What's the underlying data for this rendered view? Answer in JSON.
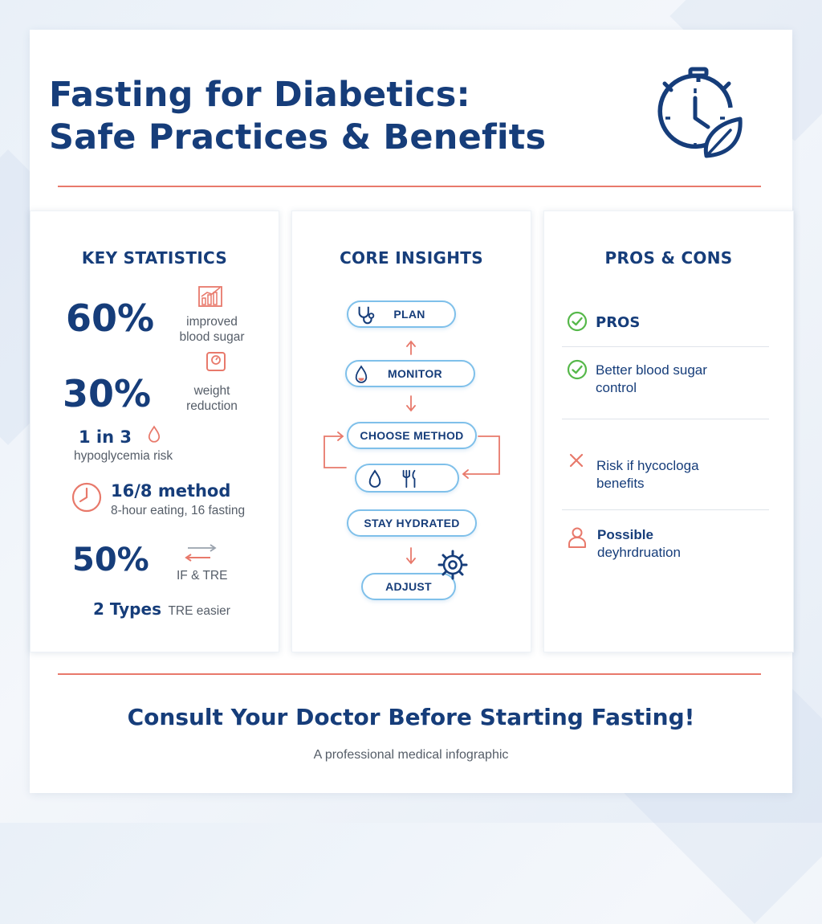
{
  "header": {
    "title_line1": "Fasting for Diabetics:",
    "title_line2": "Safe Practices & Benefits",
    "icon": "stopwatch-leaf-icon"
  },
  "colors": {
    "navy": "#163d7a",
    "accent_red": "#e8796b",
    "pill_blue": "#7fc0ea",
    "check_green": "#56b84a",
    "gray_text": "#555d68"
  },
  "stats": {
    "title": "KEY STATISTICS",
    "items": [
      {
        "value": "60%",
        "label_line1": "improved",
        "label_line2": "blood sugar",
        "icon": "chart-icon"
      },
      {
        "value": "30%",
        "label_line1": "weight",
        "label_line2": "reduction",
        "icon": "scale-icon"
      },
      {
        "value": "1 in 3",
        "label": "hypoglycemia risk",
        "icon": "drop-icon"
      },
      {
        "value": "16/8 method",
        "label": "8-hour eating, 16 fasting",
        "icon": "clock-icon"
      },
      {
        "value": "50%",
        "label": "IF & TRE",
        "icon": "arrows-icon"
      },
      {
        "value": "2 Types",
        "label": "TRE easier"
      }
    ]
  },
  "insights": {
    "title": "CORE INSIGHTS",
    "steps": [
      {
        "label": "PLAN",
        "icon": "stethoscope-icon"
      },
      {
        "label": "MONITOR",
        "icon": "blood-drop-icon"
      },
      {
        "label": "CHOOSE METHOD"
      },
      {
        "label": "",
        "icons": [
          "water-drop-icon",
          "fork-knife-icon"
        ]
      },
      {
        "label": "STAY HYDRATED"
      },
      {
        "label": "ADJUST",
        "icon": "gear-icon"
      }
    ]
  },
  "proscons": {
    "title": "PROS & CONS",
    "pros_heading": "PROS",
    "items": [
      {
        "type": "pro",
        "line1": "Better blood sugar",
        "line2": "control"
      },
      {
        "type": "con",
        "line1": "Risk if hycocloga",
        "line2": "benefits"
      },
      {
        "type": "con",
        "line1": "Possible",
        "line2": "deyhrdruation"
      }
    ]
  },
  "footer": {
    "cta": "Consult Your Doctor Before Starting Fasting!",
    "caption": "A professional medical infographic"
  }
}
